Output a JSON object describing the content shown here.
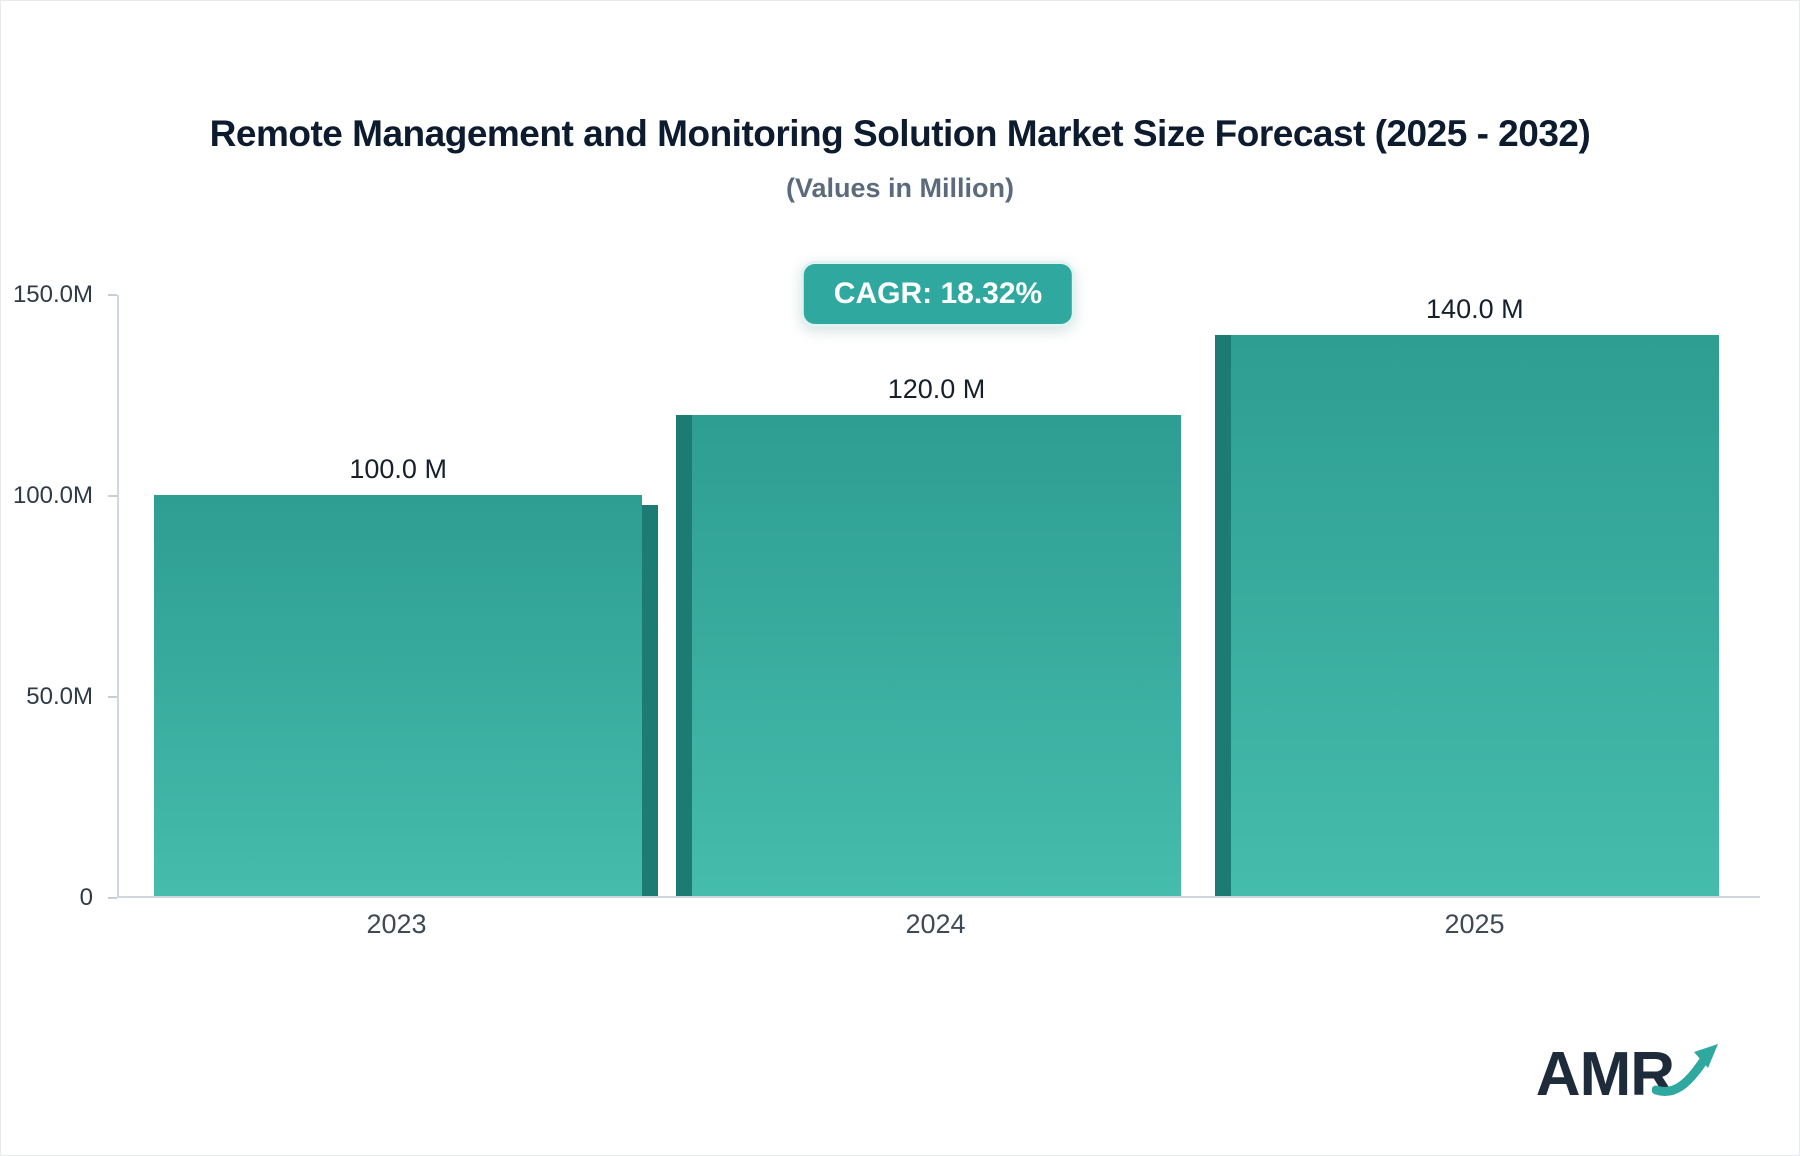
{
  "chart_data": {
    "type": "bar",
    "title": "Remote Management and Monitoring Solution Market Size Forecast (2025 - 2032)",
    "subtitle": "(Values in Million)",
    "cagr_label": "CAGR: 18.32%",
    "categories": [
      "2023",
      "2024",
      "2025"
    ],
    "values": [
      100.0,
      120.0,
      140.0
    ],
    "value_labels": [
      "100.0 M",
      "120.0 M",
      "140.0 M"
    ],
    "unit": "Million",
    "ylim": [
      0,
      150
    ],
    "y_ticks": [
      "150.0M",
      "100.0M",
      "50.0M",
      "0"
    ],
    "y_tick_values": [
      150,
      100,
      50,
      0
    ],
    "grid": false,
    "legend": "none",
    "colors": {
      "accent": "#2FA9A0",
      "bar_top": "#2E9D92",
      "bar_bottom": "#45BCAC",
      "bar_side": "#1C7B72",
      "axis": "#CFD6DD"
    }
  },
  "logo": {
    "text": "AMR"
  }
}
